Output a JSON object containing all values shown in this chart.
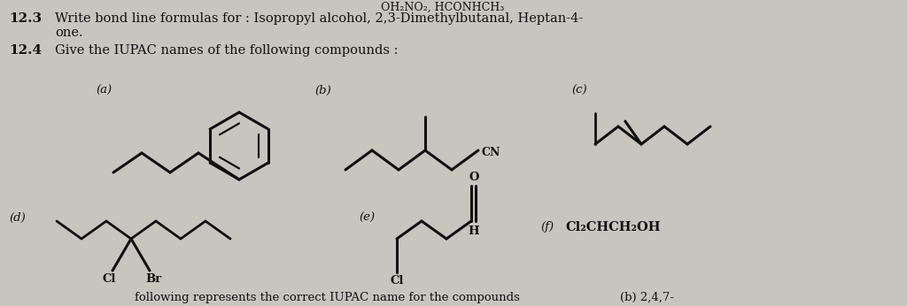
{
  "bg_color": "#c8c5be",
  "text_color": "#111111",
  "line_width": 2.0,
  "text_123_line1": "Write bond line formulas for : Isopropyl alcohol, 2,3-Dimethylbutanal, Heptan-4-",
  "text_123_line2": "one.",
  "text_124": "Give the IUPAC names of the following compounds :",
  "bottom_text": "following represents the correct IUPAC name for the compounds",
  "f_formula": "Cl₂CHCH₂OH",
  "top_partial": "OH₂NO₂, HCONHCH₃"
}
